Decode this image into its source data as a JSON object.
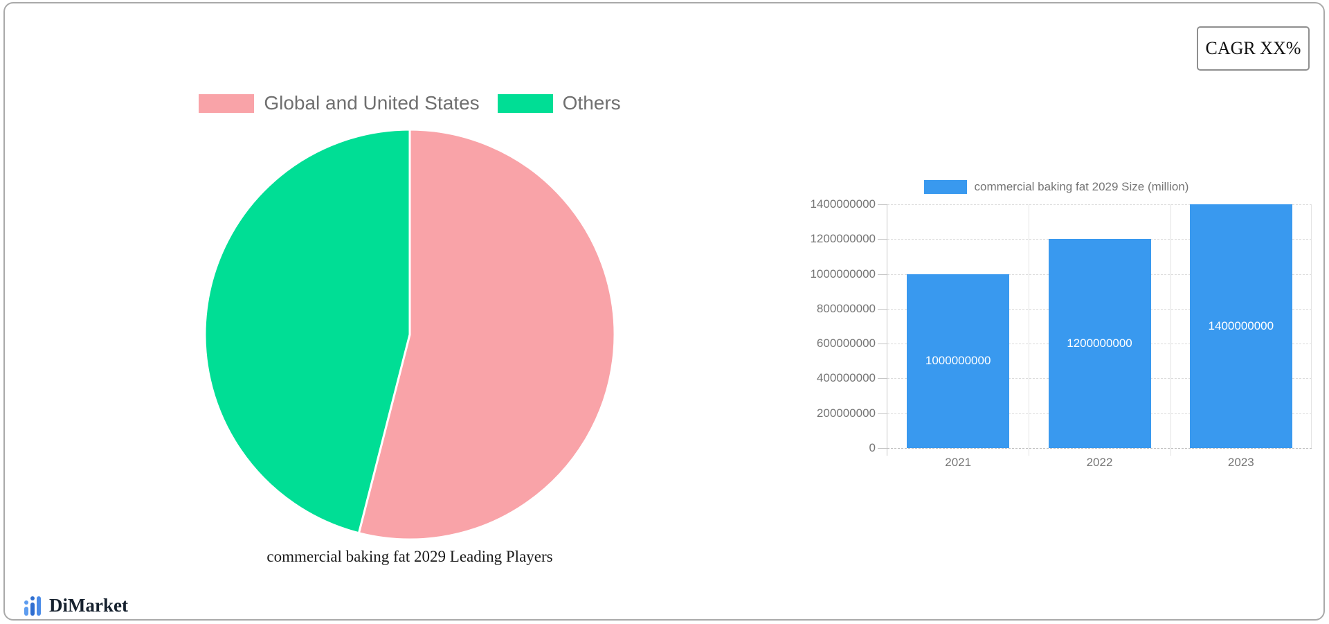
{
  "cagr": {
    "label": "CAGR XX%"
  },
  "logo": {
    "text": "DiMarket"
  },
  "colors": {
    "pie_slice_1": "#F9A3A8",
    "pie_slice_2": "#00DE95",
    "bar_fill": "#3999EF",
    "axis_text": "#757575",
    "legend_text": "#6F6F6F",
    "card_border": "#A9A9A9"
  },
  "chart_data": [
    {
      "type": "pie",
      "title": "commercial baking fat 2029 Leading Players",
      "labels": [
        "Global and United States",
        "Others"
      ],
      "values": [
        54,
        46
      ],
      "colors": [
        "#F9A3A8",
        "#00DE95"
      ],
      "legend_position": "top",
      "start_angle": "12 o'clock, clockwise",
      "gap_color": "#FFFFFF"
    },
    {
      "type": "bar",
      "series_label": "commercial baking fat 2029 Size (million)",
      "categories": [
        "2021",
        "2022",
        "2023"
      ],
      "values": [
        1000000000,
        1200000000,
        1400000000
      ],
      "value_labels": [
        "1000000000",
        "1200000000",
        "1400000000"
      ],
      "bar_color": "#3999EF",
      "ylim": [
        0,
        1400000000
      ],
      "yticks": [
        0,
        200000000,
        400000000,
        600000000,
        800000000,
        1000000000,
        1200000000,
        1400000000
      ],
      "grid": true,
      "legend_position": "top",
      "value_label_position": "center-inside"
    }
  ]
}
